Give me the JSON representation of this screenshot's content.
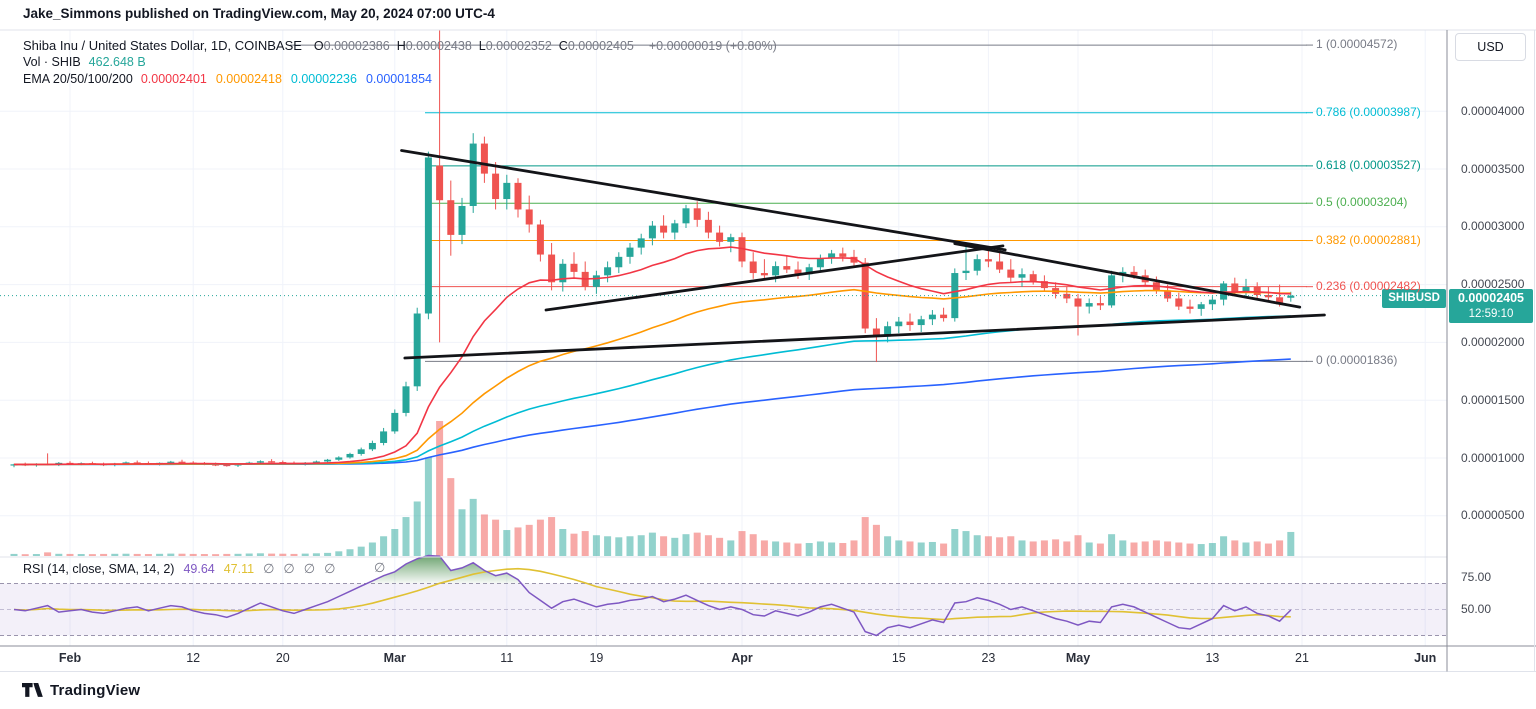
{
  "header": {
    "text": "Jake_Simmons published on TradingView.com, May 20, 2024 07:00 UTC-4"
  },
  "legend": {
    "symbol_title": "Shiba Inu / United States Dollar, 1D, COINBASE",
    "ohlc": [
      {
        "k": "O",
        "v": "0.00002386"
      },
      {
        "k": "H",
        "v": "0.00002438"
      },
      {
        "k": "L",
        "v": "0.00002352"
      },
      {
        "k": "C",
        "v": "0.00002405"
      }
    ],
    "change": "+0.00000019 (+0.80%)",
    "volume_label": "Vol · SHIB",
    "volume_value": "462.648 B",
    "ema_label": "EMA 20/50/100/200",
    "ema_values": [
      {
        "v": "0.00002401",
        "color": "#f23645"
      },
      {
        "v": "0.00002418",
        "color": "#ff9800"
      },
      {
        "v": "0.00002236",
        "color": "#00bcd4"
      },
      {
        "v": "0.00001854",
        "color": "#2962ff"
      }
    ]
  },
  "rsi_legend": {
    "title": "RSI (14, close, SMA, 14, 2)",
    "value1": "49.64",
    "value2": "47.11",
    "value1_color": "#7e57c2",
    "value2_color": "#e0c133",
    "empty_markers": [
      "∅",
      "∅",
      "∅",
      "∅"
    ],
    "floating_marker": "∅"
  },
  "axis": {
    "currency": "USD",
    "price_ticks": [
      {
        "label": "0.00004000",
        "value": 4000
      },
      {
        "label": "0.00003500",
        "value": 3500
      },
      {
        "label": "0.00003000",
        "value": 3000
      },
      {
        "label": "0.00002500",
        "value": 2500
      },
      {
        "label": "0.00002000",
        "value": 2000
      },
      {
        "label": "0.00001500",
        "value": 1500
      },
      {
        "label": "0.00001000",
        "value": 1000
      },
      {
        "label": "0.00000500",
        "value": 500
      }
    ],
    "rsi_ticks": [
      {
        "label": "75.00",
        "value": 75
      },
      {
        "label": "50.00",
        "value": 50
      }
    ],
    "time_ticks": [
      {
        "label": "Feb",
        "i": 5,
        "major": true
      },
      {
        "label": "12",
        "i": 16,
        "major": false
      },
      {
        "label": "20",
        "i": 24,
        "major": false
      },
      {
        "label": "Mar",
        "i": 34,
        "major": true
      },
      {
        "label": "11",
        "i": 44,
        "major": false
      },
      {
        "label": "19",
        "i": 52,
        "major": false
      },
      {
        "label": "Apr",
        "i": 65,
        "major": true
      },
      {
        "label": "15",
        "i": 79,
        "major": false
      },
      {
        "label": "23",
        "i": 87,
        "major": false
      },
      {
        "label": "May",
        "i": 95,
        "major": true
      },
      {
        "label": "13",
        "i": 107,
        "major": false
      },
      {
        "label": "21",
        "i": 115,
        "major": false
      },
      {
        "label": "Jun",
        "i": 126,
        "major": true
      }
    ]
  },
  "badge": {
    "symbol": "SHIBUSD",
    "price": "0.00002405",
    "countdown": "12:59:10"
  },
  "footer": {
    "brand": "TradingView"
  },
  "chart_data": {
    "type": "candlestick",
    "title": "Shiba Inu / United States Dollar",
    "interval": "1D",
    "exchange": "COINBASE",
    "price_unit": "1e-8 USD (value 2405 = 0.00002405)",
    "ylim": [
      500,
      4700
    ],
    "last_bar": {
      "open": 2386,
      "high": 2438,
      "low": 2352,
      "close": 2405,
      "change": "+0.80%"
    },
    "candles": [
      [
        935,
        950,
        920,
        945,
        40
      ],
      [
        945,
        960,
        930,
        938,
        35
      ],
      [
        938,
        955,
        925,
        950,
        38
      ],
      [
        950,
        1040,
        935,
        942,
        70
      ],
      [
        942,
        965,
        930,
        958,
        42
      ],
      [
        958,
        972,
        945,
        950,
        40
      ],
      [
        950,
        962,
        938,
        955,
        38
      ],
      [
        955,
        968,
        942,
        948,
        36
      ],
      [
        948,
        960,
        930,
        940,
        40
      ],
      [
        940,
        958,
        928,
        952,
        42
      ],
      [
        952,
        970,
        944,
        962,
        44
      ],
      [
        962,
        978,
        950,
        956,
        40
      ],
      [
        956,
        970,
        940,
        948,
        38
      ],
      [
        948,
        962,
        935,
        958,
        42
      ],
      [
        958,
        975,
        948,
        968,
        46
      ],
      [
        968,
        985,
        955,
        960,
        44
      ],
      [
        960,
        972,
        945,
        952,
        40
      ],
      [
        952,
        965,
        938,
        945,
        38
      ],
      [
        945,
        960,
        930,
        940,
        36
      ],
      [
        940,
        955,
        925,
        935,
        40
      ],
      [
        935,
        952,
        922,
        947,
        42
      ],
      [
        947,
        968,
        940,
        960,
        48
      ],
      [
        960,
        980,
        952,
        972,
        52
      ],
      [
        972,
        990,
        960,
        965,
        46
      ],
      [
        965,
        978,
        948,
        955,
        44
      ],
      [
        955,
        970,
        940,
        948,
        40
      ],
      [
        948,
        965,
        935,
        958,
        46
      ],
      [
        958,
        978,
        950,
        970,
        52
      ],
      [
        970,
        992,
        962,
        985,
        60
      ],
      [
        985,
        1015,
        975,
        1005,
        90
      ],
      [
        1005,
        1045,
        995,
        1035,
        130
      ],
      [
        1035,
        1090,
        1020,
        1075,
        180
      ],
      [
        1075,
        1150,
        1060,
        1130,
        260
      ],
      [
        1130,
        1260,
        1110,
        1230,
        380
      ],
      [
        1230,
        1420,
        1210,
        1390,
        520
      ],
      [
        1390,
        1660,
        1360,
        1620,
        750
      ],
      [
        1620,
        2300,
        1580,
        2250,
        1050
      ],
      [
        2250,
        3650,
        2200,
        3600,
        1900
      ],
      [
        3530,
        4700,
        2000,
        3230,
        2600
      ],
      [
        3230,
        3400,
        2750,
        2930,
        1500
      ],
      [
        2930,
        3250,
        2850,
        3180,
        900
      ],
      [
        3180,
        3810,
        3120,
        3720,
        1100
      ],
      [
        3720,
        3780,
        3380,
        3460,
        800
      ],
      [
        3460,
        3560,
        3150,
        3240,
        700
      ],
      [
        3240,
        3450,
        3150,
        3380,
        500
      ],
      [
        3380,
        3420,
        3080,
        3150,
        550
      ],
      [
        3150,
        3270,
        2950,
        3020,
        600
      ],
      [
        3020,
        3060,
        2700,
        2760,
        700
      ],
      [
        2760,
        2860,
        2450,
        2520,
        750
      ],
      [
        2520,
        2720,
        2440,
        2680,
        520
      ],
      [
        2680,
        2780,
        2560,
        2610,
        430
      ],
      [
        2610,
        2700,
        2450,
        2480,
        480
      ],
      [
        2480,
        2620,
        2420,
        2580,
        400
      ],
      [
        2580,
        2700,
        2520,
        2650,
        380
      ],
      [
        2650,
        2780,
        2600,
        2740,
        360
      ],
      [
        2740,
        2860,
        2680,
        2820,
        380
      ],
      [
        2820,
        2940,
        2760,
        2900,
        400
      ],
      [
        2900,
        3050,
        2840,
        3010,
        450
      ],
      [
        3010,
        3100,
        2900,
        2950,
        380
      ],
      [
        2950,
        3060,
        2890,
        3030,
        350
      ],
      [
        3030,
        3190,
        2990,
        3160,
        420
      ],
      [
        3160,
        3220,
        3000,
        3060,
        450
      ],
      [
        3060,
        3130,
        2900,
        2950,
        400
      ],
      [
        2950,
        3010,
        2830,
        2870,
        350
      ],
      [
        2870,
        2940,
        2780,
        2910,
        300
      ],
      [
        2910,
        2950,
        2650,
        2700,
        480
      ],
      [
        2700,
        2780,
        2550,
        2600,
        420
      ],
      [
        2600,
        2720,
        2540,
        2580,
        300
      ],
      [
        2580,
        2700,
        2520,
        2660,
        280
      ],
      [
        2660,
        2750,
        2600,
        2630,
        260
      ],
      [
        2630,
        2700,
        2550,
        2590,
        240
      ],
      [
        2590,
        2680,
        2540,
        2650,
        250
      ],
      [
        2650,
        2760,
        2620,
        2730,
        280
      ],
      [
        2730,
        2800,
        2680,
        2770,
        260
      ],
      [
        2770,
        2820,
        2700,
        2740,
        250
      ],
      [
        2740,
        2800,
        2660,
        2690,
        300
      ],
      [
        2690,
        2730,
        2080,
        2120,
        750
      ],
      [
        2120,
        2210,
        1830,
        2050,
        600
      ],
      [
        2050,
        2180,
        2000,
        2140,
        380
      ],
      [
        2140,
        2220,
        2080,
        2180,
        300
      ],
      [
        2180,
        2250,
        2100,
        2150,
        280
      ],
      [
        2150,
        2230,
        2090,
        2200,
        260
      ],
      [
        2200,
        2280,
        2150,
        2240,
        270
      ],
      [
        2240,
        2300,
        2180,
        2210,
        240
      ],
      [
        2210,
        2640,
        2180,
        2600,
        520
      ],
      [
        2600,
        2830,
        2540,
        2620,
        480
      ],
      [
        2620,
        2760,
        2580,
        2720,
        400
      ],
      [
        2720,
        2820,
        2650,
        2700,
        380
      ],
      [
        2700,
        2780,
        2600,
        2630,
        360
      ],
      [
        2630,
        2720,
        2520,
        2560,
        380
      ],
      [
        2560,
        2640,
        2480,
        2590,
        300
      ],
      [
        2590,
        2620,
        2500,
        2530,
        280
      ],
      [
        2530,
        2580,
        2440,
        2470,
        300
      ],
      [
        2470,
        2520,
        2380,
        2420,
        320
      ],
      [
        2420,
        2480,
        2340,
        2380,
        280
      ],
      [
        2380,
        2420,
        2060,
        2310,
        400
      ],
      [
        2310,
        2380,
        2250,
        2340,
        260
      ],
      [
        2340,
        2400,
        2280,
        2320,
        240
      ],
      [
        2320,
        2620,
        2300,
        2580,
        420
      ],
      [
        2580,
        2650,
        2520,
        2610,
        300
      ],
      [
        2610,
        2660,
        2550,
        2580,
        260
      ],
      [
        2580,
        2630,
        2480,
        2520,
        280
      ],
      [
        2520,
        2570,
        2420,
        2450,
        300
      ],
      [
        2450,
        2500,
        2350,
        2380,
        280
      ],
      [
        2380,
        2430,
        2280,
        2310,
        260
      ],
      [
        2310,
        2370,
        2250,
        2290,
        240
      ],
      [
        2290,
        2350,
        2230,
        2330,
        230
      ],
      [
        2330,
        2400,
        2280,
        2370,
        250
      ],
      [
        2370,
        2530,
        2320,
        2510,
        380
      ],
      [
        2510,
        2560,
        2400,
        2430,
        300
      ],
      [
        2430,
        2550,
        2400,
        2480,
        260
      ],
      [
        2480,
        2520,
        2380,
        2410,
        280
      ],
      [
        2410,
        2480,
        2350,
        2390,
        240
      ],
      [
        2390,
        2500,
        2310,
        2330,
        300
      ],
      [
        2386,
        2438,
        2352,
        2405,
        463
      ]
    ],
    "rsi": [
      50,
      49,
      51,
      53,
      48,
      49,
      50,
      48,
      47,
      49,
      51,
      52,
      49,
      51,
      53,
      52,
      49,
      47,
      46,
      44,
      47,
      51,
      55,
      52,
      49,
      47,
      50,
      53,
      56,
      60,
      64,
      68,
      72,
      76,
      79,
      85,
      89,
      92,
      91,
      80,
      82,
      86,
      80,
      76,
      78,
      73,
      63,
      57,
      51,
      56,
      58,
      55,
      52,
      54,
      55,
      57,
      58,
      60,
      56,
      58,
      61,
      57,
      53,
      50,
      52,
      50,
      46,
      45,
      49,
      47,
      45,
      48,
      52,
      54,
      51,
      48,
      33,
      30,
      36,
      38,
      36,
      39,
      42,
      40,
      55,
      56,
      59,
      57,
      54,
      50,
      52,
      49,
      46,
      43,
      41,
      38,
      41,
      40,
      52,
      54,
      52,
      48,
      44,
      40,
      36,
      35,
      39,
      43,
      53,
      49,
      52,
      47,
      45,
      41,
      49.64
    ],
    "rsi_levels": {
      "overbought": 70,
      "middle": 50,
      "oversold": 30
    },
    "rsi_smoothing_sma_period": 14,
    "ema_periods": [
      20,
      50,
      100,
      200
    ],
    "fib_levels": [
      {
        "label": "1 (0.00004572)",
        "value": 4572,
        "color": "#787b86",
        "x_start": 290
      },
      {
        "label": "0.786 (0.00003987)",
        "value": 3987,
        "color": "#00bcd4",
        "x_start": 425
      },
      {
        "label": "0.618 (0.00003527)",
        "value": 3527,
        "color": "#009688",
        "x_start": 425
      },
      {
        "label": "0.5 (0.00003204)",
        "value": 3204,
        "color": "#4caf50",
        "x_start": 425
      },
      {
        "label": "0.382 (0.00002881)",
        "value": 2881,
        "color": "#ff9800",
        "x_start": 425
      },
      {
        "label": "0.236 (0.00002482)",
        "value": 2482,
        "color": "#ef5350",
        "x_start": 425
      },
      {
        "label": "0 (0.00001836)",
        "value": 1836,
        "color": "#787b86",
        "x_start": 425
      }
    ],
    "current_price_line": {
      "value": 2405,
      "color": "#26a69a"
    },
    "trendlines": [
      {
        "i1": 34.6,
        "p1": 3660,
        "i2": 88.5,
        "p2": 2800
      },
      {
        "i1": 47.5,
        "p1": 2280,
        "i2": 88.3,
        "p2": 2835
      },
      {
        "i1": 84.0,
        "p1": 2855,
        "i2": 114.8,
        "p2": 2305
      },
      {
        "i1": 34.9,
        "p1": 1865,
        "i2": 117.0,
        "p2": 2237
      }
    ],
    "colors": {
      "up": "#26a69a",
      "down": "#ef5350",
      "vol_up": "rgba(38,166,154,0.5)",
      "vol_down": "rgba(239,83,80,0.5)",
      "ema20": "#f23645",
      "ema50": "#ff9800",
      "ema100": "#00bcd4",
      "ema200": "#2962ff",
      "rsi_line": "#7e57c2",
      "rsi_sma": "#e0c133",
      "rsi_band_fill": "rgba(126,87,194,0.09)",
      "rsi_band_line": "#9a94ad",
      "overbought_fill_top": "#2e7d32",
      "trendline": "#131418",
      "grid": "#f0f3fa",
      "border_light": "#e0e3eb",
      "border_dark": "#8b8e98"
    }
  }
}
